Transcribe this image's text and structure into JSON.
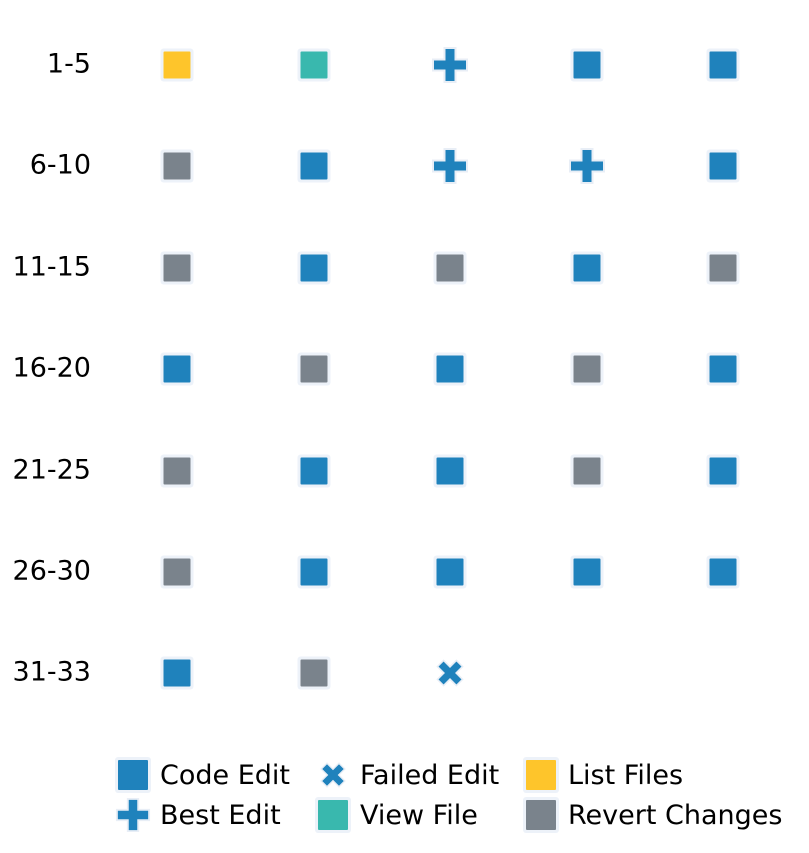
{
  "figure": {
    "background": "#ffffff",
    "text_color": "#000000",
    "marker_edge_color": "#e8eef6"
  },
  "chart_data": {
    "type": "scatter",
    "subtype": "categorical-marker-grid",
    "title": "",
    "xlabel": "",
    "ylabel": "",
    "grid": false,
    "legend_position": "bottom",
    "columns_per_row": 5,
    "row_labels": [
      "1-5",
      "6-10",
      "11-15",
      "16-20",
      "21-25",
      "26-30",
      "31-33"
    ],
    "rows": [
      {
        "label": "1-5",
        "actions": [
          "list_files",
          "view_file",
          "best_edit",
          "code_edit",
          "code_edit"
        ]
      },
      {
        "label": "6-10",
        "actions": [
          "revert_changes",
          "code_edit",
          "best_edit",
          "best_edit",
          "code_edit"
        ]
      },
      {
        "label": "11-15",
        "actions": [
          "revert_changes",
          "code_edit",
          "revert_changes",
          "code_edit",
          "revert_changes"
        ]
      },
      {
        "label": "16-20",
        "actions": [
          "code_edit",
          "revert_changes",
          "code_edit",
          "revert_changes",
          "code_edit"
        ]
      },
      {
        "label": "21-25",
        "actions": [
          "revert_changes",
          "code_edit",
          "code_edit",
          "revert_changes",
          "code_edit"
        ]
      },
      {
        "label": "26-30",
        "actions": [
          "revert_changes",
          "code_edit",
          "code_edit",
          "code_edit",
          "code_edit"
        ]
      },
      {
        "label": "31-33",
        "actions": [
          "code_edit",
          "revert_changes",
          "failed_edit"
        ]
      }
    ],
    "legend": [
      {
        "key": "code_edit",
        "label": "Code Edit",
        "marker": "square",
        "color": "#1f82bc"
      },
      {
        "key": "failed_edit",
        "label": "Failed Edit",
        "marker": "x",
        "color": "#1f82bc"
      },
      {
        "key": "list_files",
        "label": "List Files",
        "marker": "square",
        "color": "#fec52b"
      },
      {
        "key": "best_edit",
        "label": "Best Edit",
        "marker": "plus",
        "color": "#1f82bc"
      },
      {
        "key": "view_file",
        "label": "View File",
        "marker": "square",
        "color": "#39b8ae"
      },
      {
        "key": "revert_changes",
        "label": "Revert Changes",
        "marker": "square",
        "color": "#7a838c"
      }
    ]
  }
}
